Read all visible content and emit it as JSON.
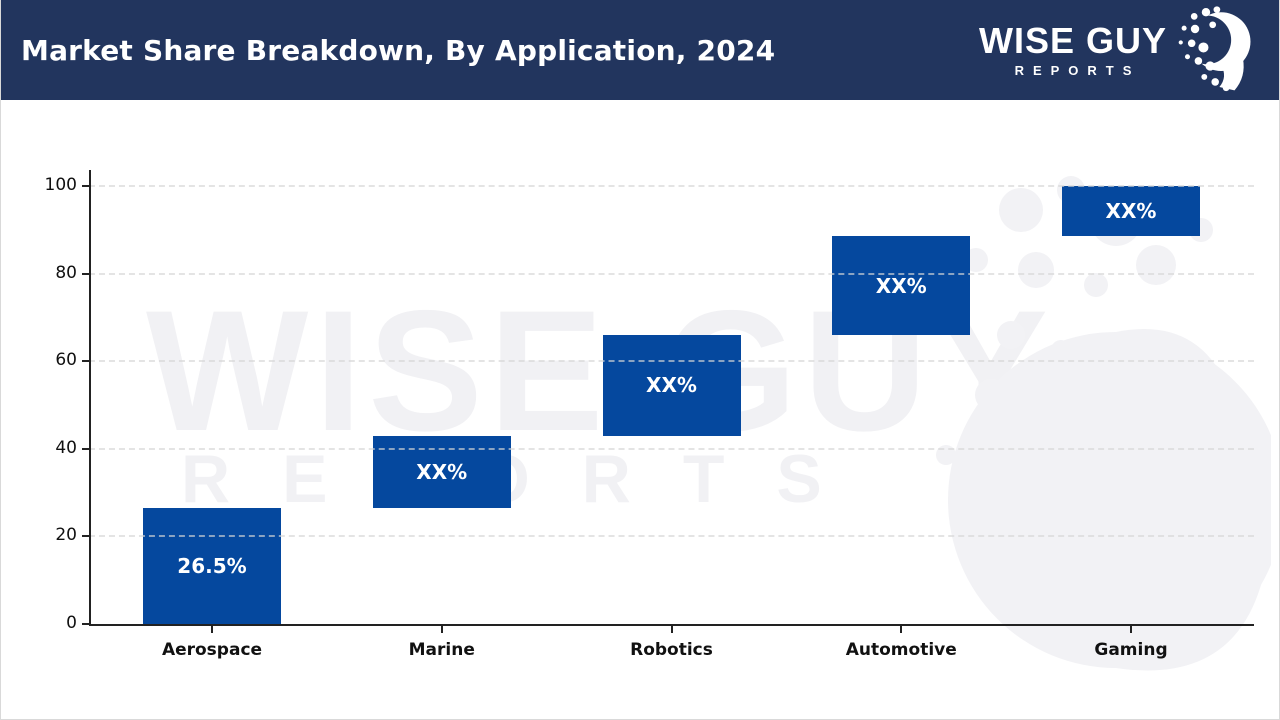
{
  "header": {
    "title": "Market Share Breakdown, By Application, 2024",
    "logo": {
      "line1": "WISE GUY",
      "line2": "REPORTS"
    }
  },
  "watermark": {
    "line1": "WISE GUY",
    "line2": "REPORTS"
  },
  "colors": {
    "header_bg": "#22355e",
    "bar_blue": "#05489e",
    "watermark_gray": "#f1f1f4",
    "grid_gray": "#d6d6d6"
  },
  "chart_data": {
    "type": "bar",
    "subtype": "waterfall",
    "title": "Market Share Breakdown, By Application, 2024",
    "categories": [
      "Aerospace",
      "Marine",
      "Robotics",
      "Automotive",
      "Gaming"
    ],
    "segments": [
      {
        "category": "Aerospace",
        "start": 0,
        "end": 26.5,
        "label": "26.5%"
      },
      {
        "category": "Marine",
        "start": 26.5,
        "end": 43,
        "label": "XX%"
      },
      {
        "category": "Robotics",
        "start": 43,
        "end": 66,
        "label": "XX%"
      },
      {
        "category": "Automotive",
        "start": 66,
        "end": 88.5,
        "label": "XX%"
      },
      {
        "category": "Gaming",
        "start": 88.5,
        "end": 100,
        "label": "XX%"
      }
    ],
    "yticks": [
      0,
      20,
      40,
      60,
      80,
      100
    ],
    "ylim": [
      0,
      100
    ],
    "xlabel": "",
    "ylabel": "",
    "grid": "dashed-horizontal",
    "legend": "none",
    "bar_color": "#05489e"
  }
}
